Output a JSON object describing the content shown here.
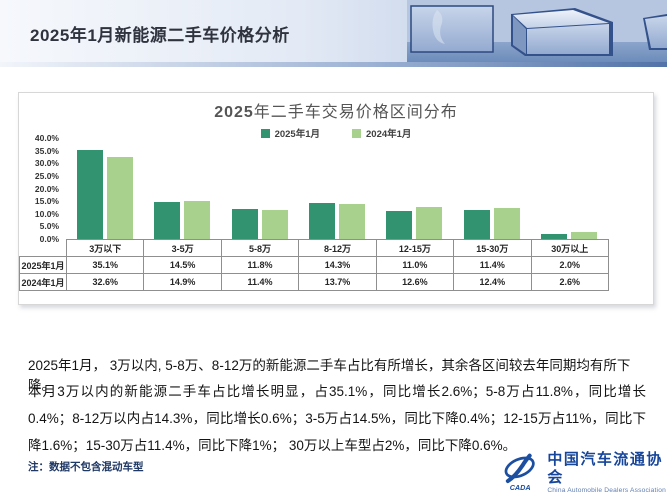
{
  "header": {
    "title": "2025年1月新能源二手车价格分析"
  },
  "chart": {
    "title_prefix": "2025",
    "title_rest": "年二手车交易价格区间分布",
    "colors": {
      "series1": "#31936F",
      "series2": "#A9D18E"
    }
  },
  "chart_data": {
    "type": "bar",
    "title": "2025年二手车交易价格区间分布",
    "categories": [
      "3万以下",
      "3-5万",
      "5-8万",
      "8-12万",
      "12-15万",
      "15-30万",
      "30万以上"
    ],
    "series": [
      {
        "name": "2025年1月",
        "values": [
          35.1,
          14.5,
          11.8,
          14.3,
          11.0,
          11.4,
          2.0
        ]
      },
      {
        "name": "2024年1月",
        "values": [
          32.6,
          14.9,
          11.4,
          13.7,
          12.6,
          12.4,
          2.6
        ]
      }
    ],
    "xlabel": "",
    "ylabel": "",
    "ylim": [
      0,
      40
    ],
    "ytick_step": 5,
    "ytick_suffix": "%",
    "grid": false,
    "legend_position": "top",
    "data_table": true
  },
  "body_text": {
    "para1": "2025年1月，  3万以内, 5-8万、8-12万的新能源二手车占比有所增长，其余各区间较去年同期均有所下降。",
    "para2": "本月3万以内的新能源二手车占比增长明显，占35.1%，同比增长2.6%；5-8万占11.8%，同比增长0.4%；8-12万以内占14.3%，同比增长0.6%；3-5万占14.5%，同比下降0.4%；12-15万占11%，同比下降1.6%；15-30万占11.4%，同比下降1%；  30万以上车型占2%，同比下降0.6%。"
  },
  "footer": {
    "note": "注：数据不包含混动车型",
    "org_cn": "中国汽车流通协会",
    "org_en": "China Automobile Dealers Association",
    "logo_text": "CADA"
  }
}
